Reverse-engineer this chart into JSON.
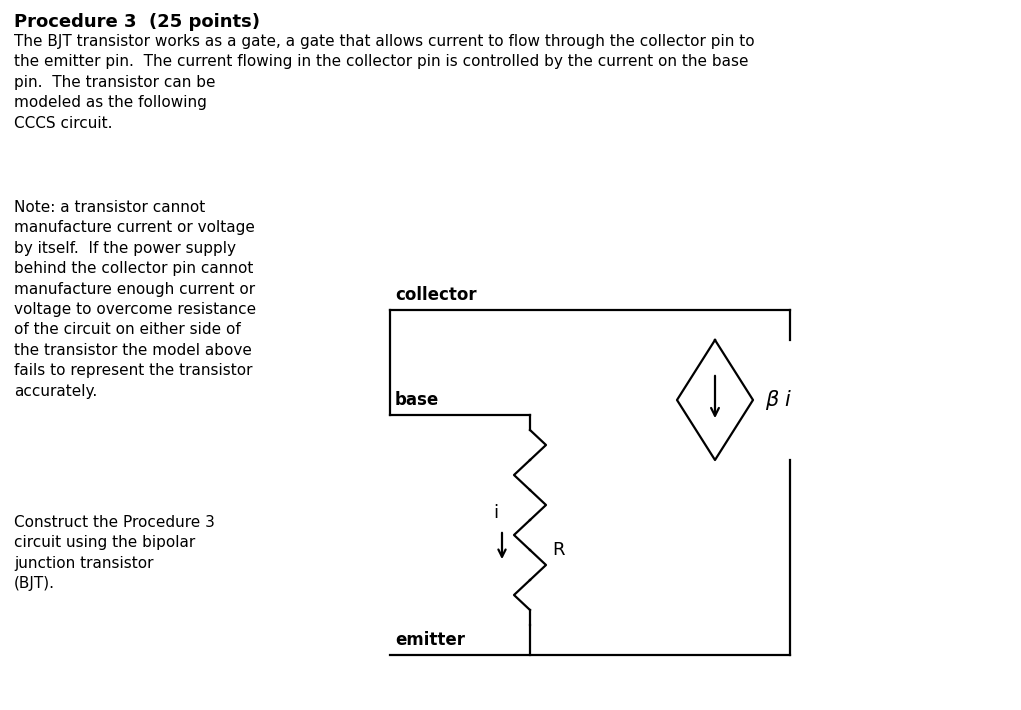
{
  "title": "Procedure 3  (25 points)",
  "body_text": "The BJT transistor works as a gate, a gate that allows current to flow through the collector pin to\nthe emitter pin.  The current flowing in the collector pin is controlled by the current on the base\npin.  The transistor can be\nmodeled as the following\nCCCS circuit.",
  "note_text": "Note: a transistor cannot\nmanufacture current or voltage\nby itself.  If the power supply\nbehind the collector pin cannot\nmanufacture enough current or\nvoltage to overcome resistance\nof the circuit on either side of\nthe transistor the model above\nfails to represent the transistor\naccurately.",
  "construct_text": "Construct the Procedure 3\ncircuit using the bipolar\njunction transistor\n(BJT).",
  "background_color": "#ffffff",
  "text_color": "#000000",
  "circuit_color": "#000000",
  "label_collector": "collector",
  "label_base": "base",
  "label_emitter": "emitter",
  "label_R": "R",
  "label_i": "i",
  "label_beta_i": "β i",
  "title_fontsize": 13,
  "body_fontsize": 11,
  "circuit_label_fontsize": 12
}
